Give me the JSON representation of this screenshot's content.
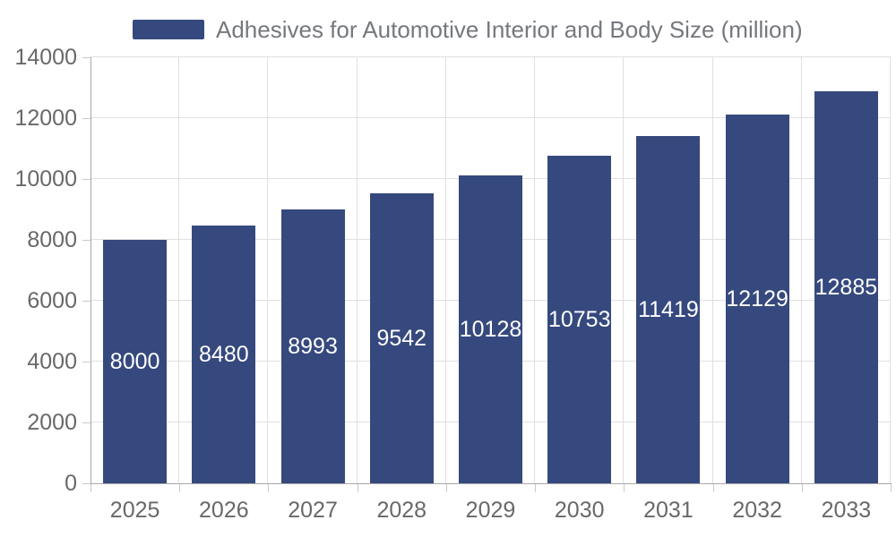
{
  "legend": {
    "label": "Adhesives for Automotive Interior and Body Size (million)"
  },
  "chart_data": {
    "type": "bar",
    "title": "",
    "xlabel": "",
    "ylabel": "",
    "categories": [
      "2025",
      "2026",
      "2027",
      "2028",
      "2029",
      "2030",
      "2031",
      "2032",
      "2033"
    ],
    "series": [
      {
        "name": "Adhesives for Automotive Interior and Body Size (million)",
        "values": [
          8000,
          8480,
          8993,
          9542,
          10128,
          10753,
          11419,
          12129,
          12885
        ]
      }
    ],
    "value_labels_position": "inside-center",
    "ylim": [
      0,
      14000
    ],
    "yticks": [
      0,
      2000,
      4000,
      6000,
      8000,
      10000,
      12000,
      14000
    ],
    "grid": true,
    "legend_position": "top",
    "colors": {
      "bar": "#36497e",
      "value_label": "#ffffff",
      "grid_line": "#e0e0e0",
      "axis_line": "#a8a8a8",
      "tick_mark": "#c9c9c9",
      "tick_label": "#686868",
      "legend_text": "#75787d"
    }
  }
}
